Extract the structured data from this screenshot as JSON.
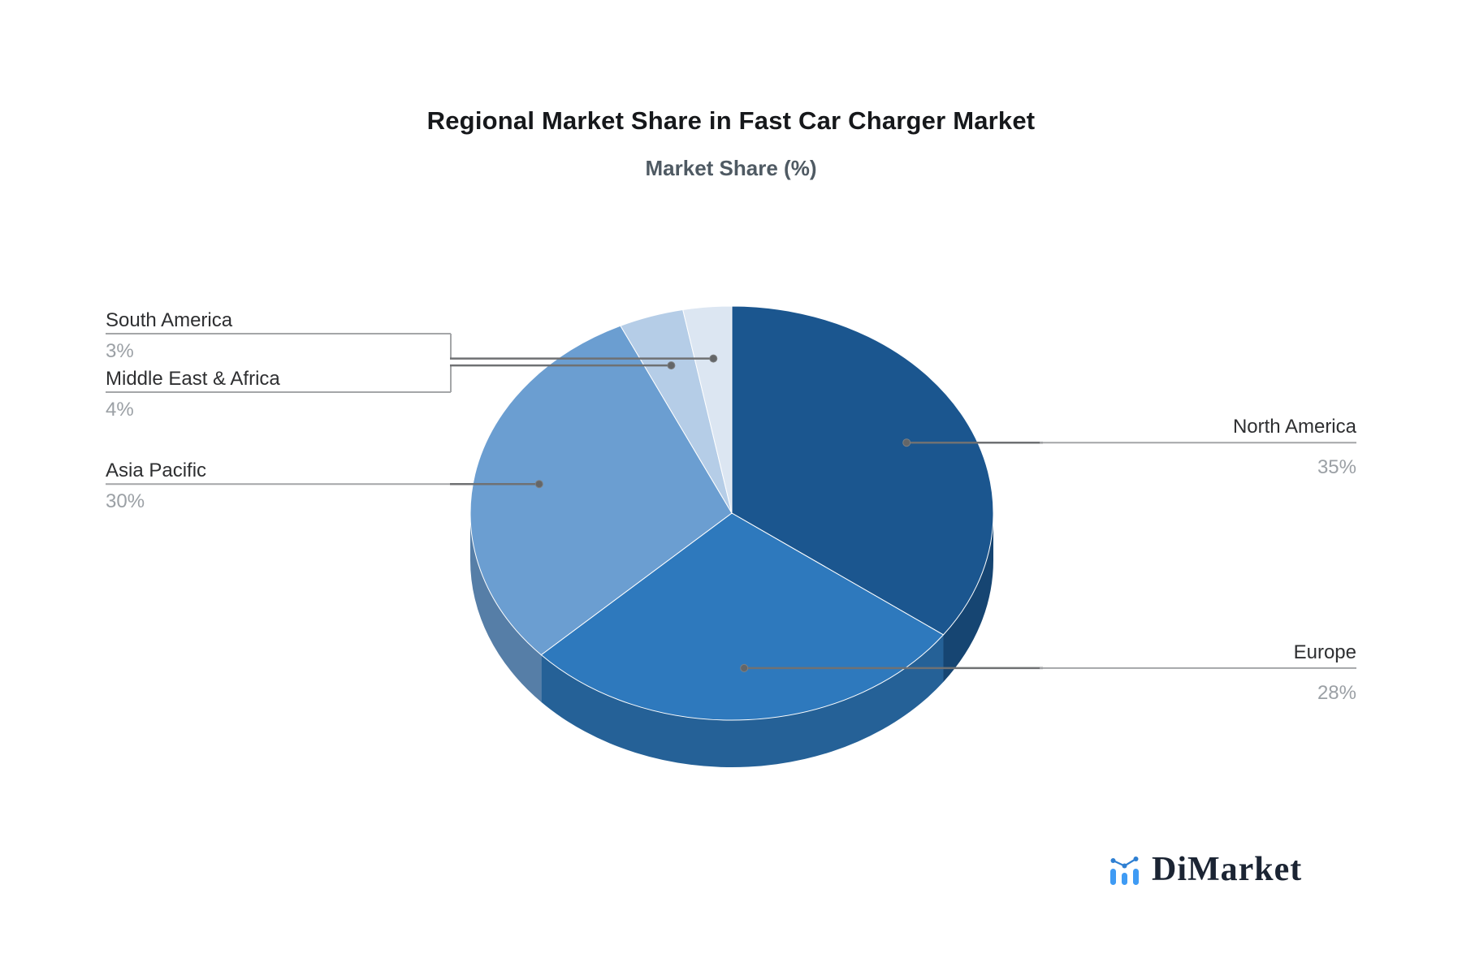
{
  "chart_data": {
    "type": "pie",
    "style": "3d",
    "title": "Regional Market Share in Fast Car Charger Market",
    "subtitle": "Market Share (%)",
    "unit": "%",
    "direction": "clockwise",
    "start_angle_deg": 0,
    "legend_position": "callout-labels",
    "slices": [
      {
        "label": "North America",
        "value": 35,
        "color": "#1b568f",
        "callout_side": "right"
      },
      {
        "label": "Europe",
        "value": 28,
        "color": "#2e79bd",
        "callout_side": "right"
      },
      {
        "label": "Asia Pacific",
        "value": 30,
        "color": "#6b9ed1",
        "callout_side": "left"
      },
      {
        "label": "Middle East & Africa",
        "value": 4,
        "color": "#b5cde7",
        "callout_side": "left"
      },
      {
        "label": "South America",
        "value": 3,
        "color": "#dce6f2",
        "callout_side": "left"
      }
    ],
    "label_color": "#2e2f31",
    "percent_color": "#9ba0a5",
    "rule_line_color": "#a4a6a8",
    "connector_line_color": "#6f7173",
    "dot_color": "#646668"
  },
  "branding": {
    "logo_text": "DiMarket",
    "logo_text_color": "#1b2433",
    "logo_bar_color": "#3f9bf4",
    "logo_accent_color": "#2e7fd2"
  }
}
